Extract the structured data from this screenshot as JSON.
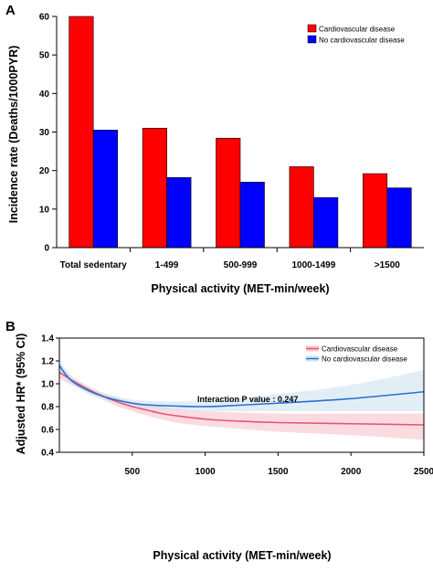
{
  "chart_data": [
    {
      "type": "bar",
      "panel": "A",
      "categories": [
        "Total sedentary",
        "1-499",
        "500-999",
        "1000-1499",
        ">1500"
      ],
      "series": [
        {
          "name": "Cardiovascular disease",
          "values": [
            60,
            31,
            28.4,
            21,
            19.2
          ],
          "color": "#ff0000"
        },
        {
          "name": "No cardiovascular disease",
          "values": [
            30.5,
            18.2,
            17,
            13,
            15.5
          ],
          "color": "#0000ff"
        }
      ],
      "xlabel": "Physical activity (MET-min/week)",
      "ylabel": "Incidence rate (Deaths/1000PYR)",
      "ylim": [
        0,
        60
      ],
      "yticks": [
        "0",
        "10",
        "20",
        "30",
        "40",
        "50",
        "60"
      ],
      "legend_position": "top-right",
      "grid": false
    },
    {
      "type": "line",
      "panel": "B",
      "xlabel": "Physical activity (MET-min/week)",
      "ylabel": "Adjusted HR* (95% CI)",
      "xlim": [
        0,
        2500
      ],
      "ylim": [
        0.4,
        1.4
      ],
      "xticks": [
        "500",
        "1000",
        "1500",
        "2000",
        "2500"
      ],
      "yticks": [
        "0.4",
        "0.6",
        "0.8",
        "1.0",
        "1.2",
        "1.4"
      ],
      "annotation": "Interaction P value : 0.247",
      "legend_position": "top-right",
      "grid": false,
      "series": [
        {
          "name": "Cardiovascular disease",
          "color": "#e75480",
          "band_color": "#f7c5cc",
          "x": [
            0,
            50,
            100,
            200,
            300,
            400,
            500,
            600,
            700,
            800,
            1000,
            1200,
            1500,
            2000,
            2500
          ],
          "y": [
            1.1,
            1.06,
            1.02,
            0.95,
            0.89,
            0.84,
            0.8,
            0.77,
            0.74,
            0.72,
            0.69,
            0.675,
            0.66,
            0.65,
            0.64
          ],
          "upper": [
            1.15,
            1.1,
            1.05,
            0.98,
            0.92,
            0.88,
            0.84,
            0.82,
            0.8,
            0.78,
            0.76,
            0.75,
            0.74,
            0.74,
            0.74
          ],
          "lower": [
            1.05,
            1.01,
            0.98,
            0.92,
            0.86,
            0.8,
            0.76,
            0.72,
            0.69,
            0.66,
            0.63,
            0.61,
            0.58,
            0.55,
            0.51
          ]
        },
        {
          "name": "No cardiovascular disease",
          "color": "#2a6fd1",
          "band_color": "#cfe3f0",
          "x": [
            0,
            50,
            100,
            200,
            300,
            400,
            500,
            600,
            800,
            1000,
            1200,
            1500,
            2000,
            2500
          ],
          "y": [
            1.16,
            1.07,
            1.01,
            0.94,
            0.89,
            0.855,
            0.83,
            0.815,
            0.805,
            0.8,
            0.81,
            0.83,
            0.87,
            0.93
          ],
          "upper": [
            1.21,
            1.12,
            1.05,
            0.97,
            0.92,
            0.885,
            0.86,
            0.85,
            0.845,
            0.85,
            0.87,
            0.91,
            0.99,
            1.12
          ],
          "lower": [
            1.11,
            1.03,
            0.98,
            0.91,
            0.86,
            0.83,
            0.8,
            0.785,
            0.77,
            0.76,
            0.76,
            0.76,
            0.76,
            0.76
          ]
        }
      ]
    }
  ]
}
